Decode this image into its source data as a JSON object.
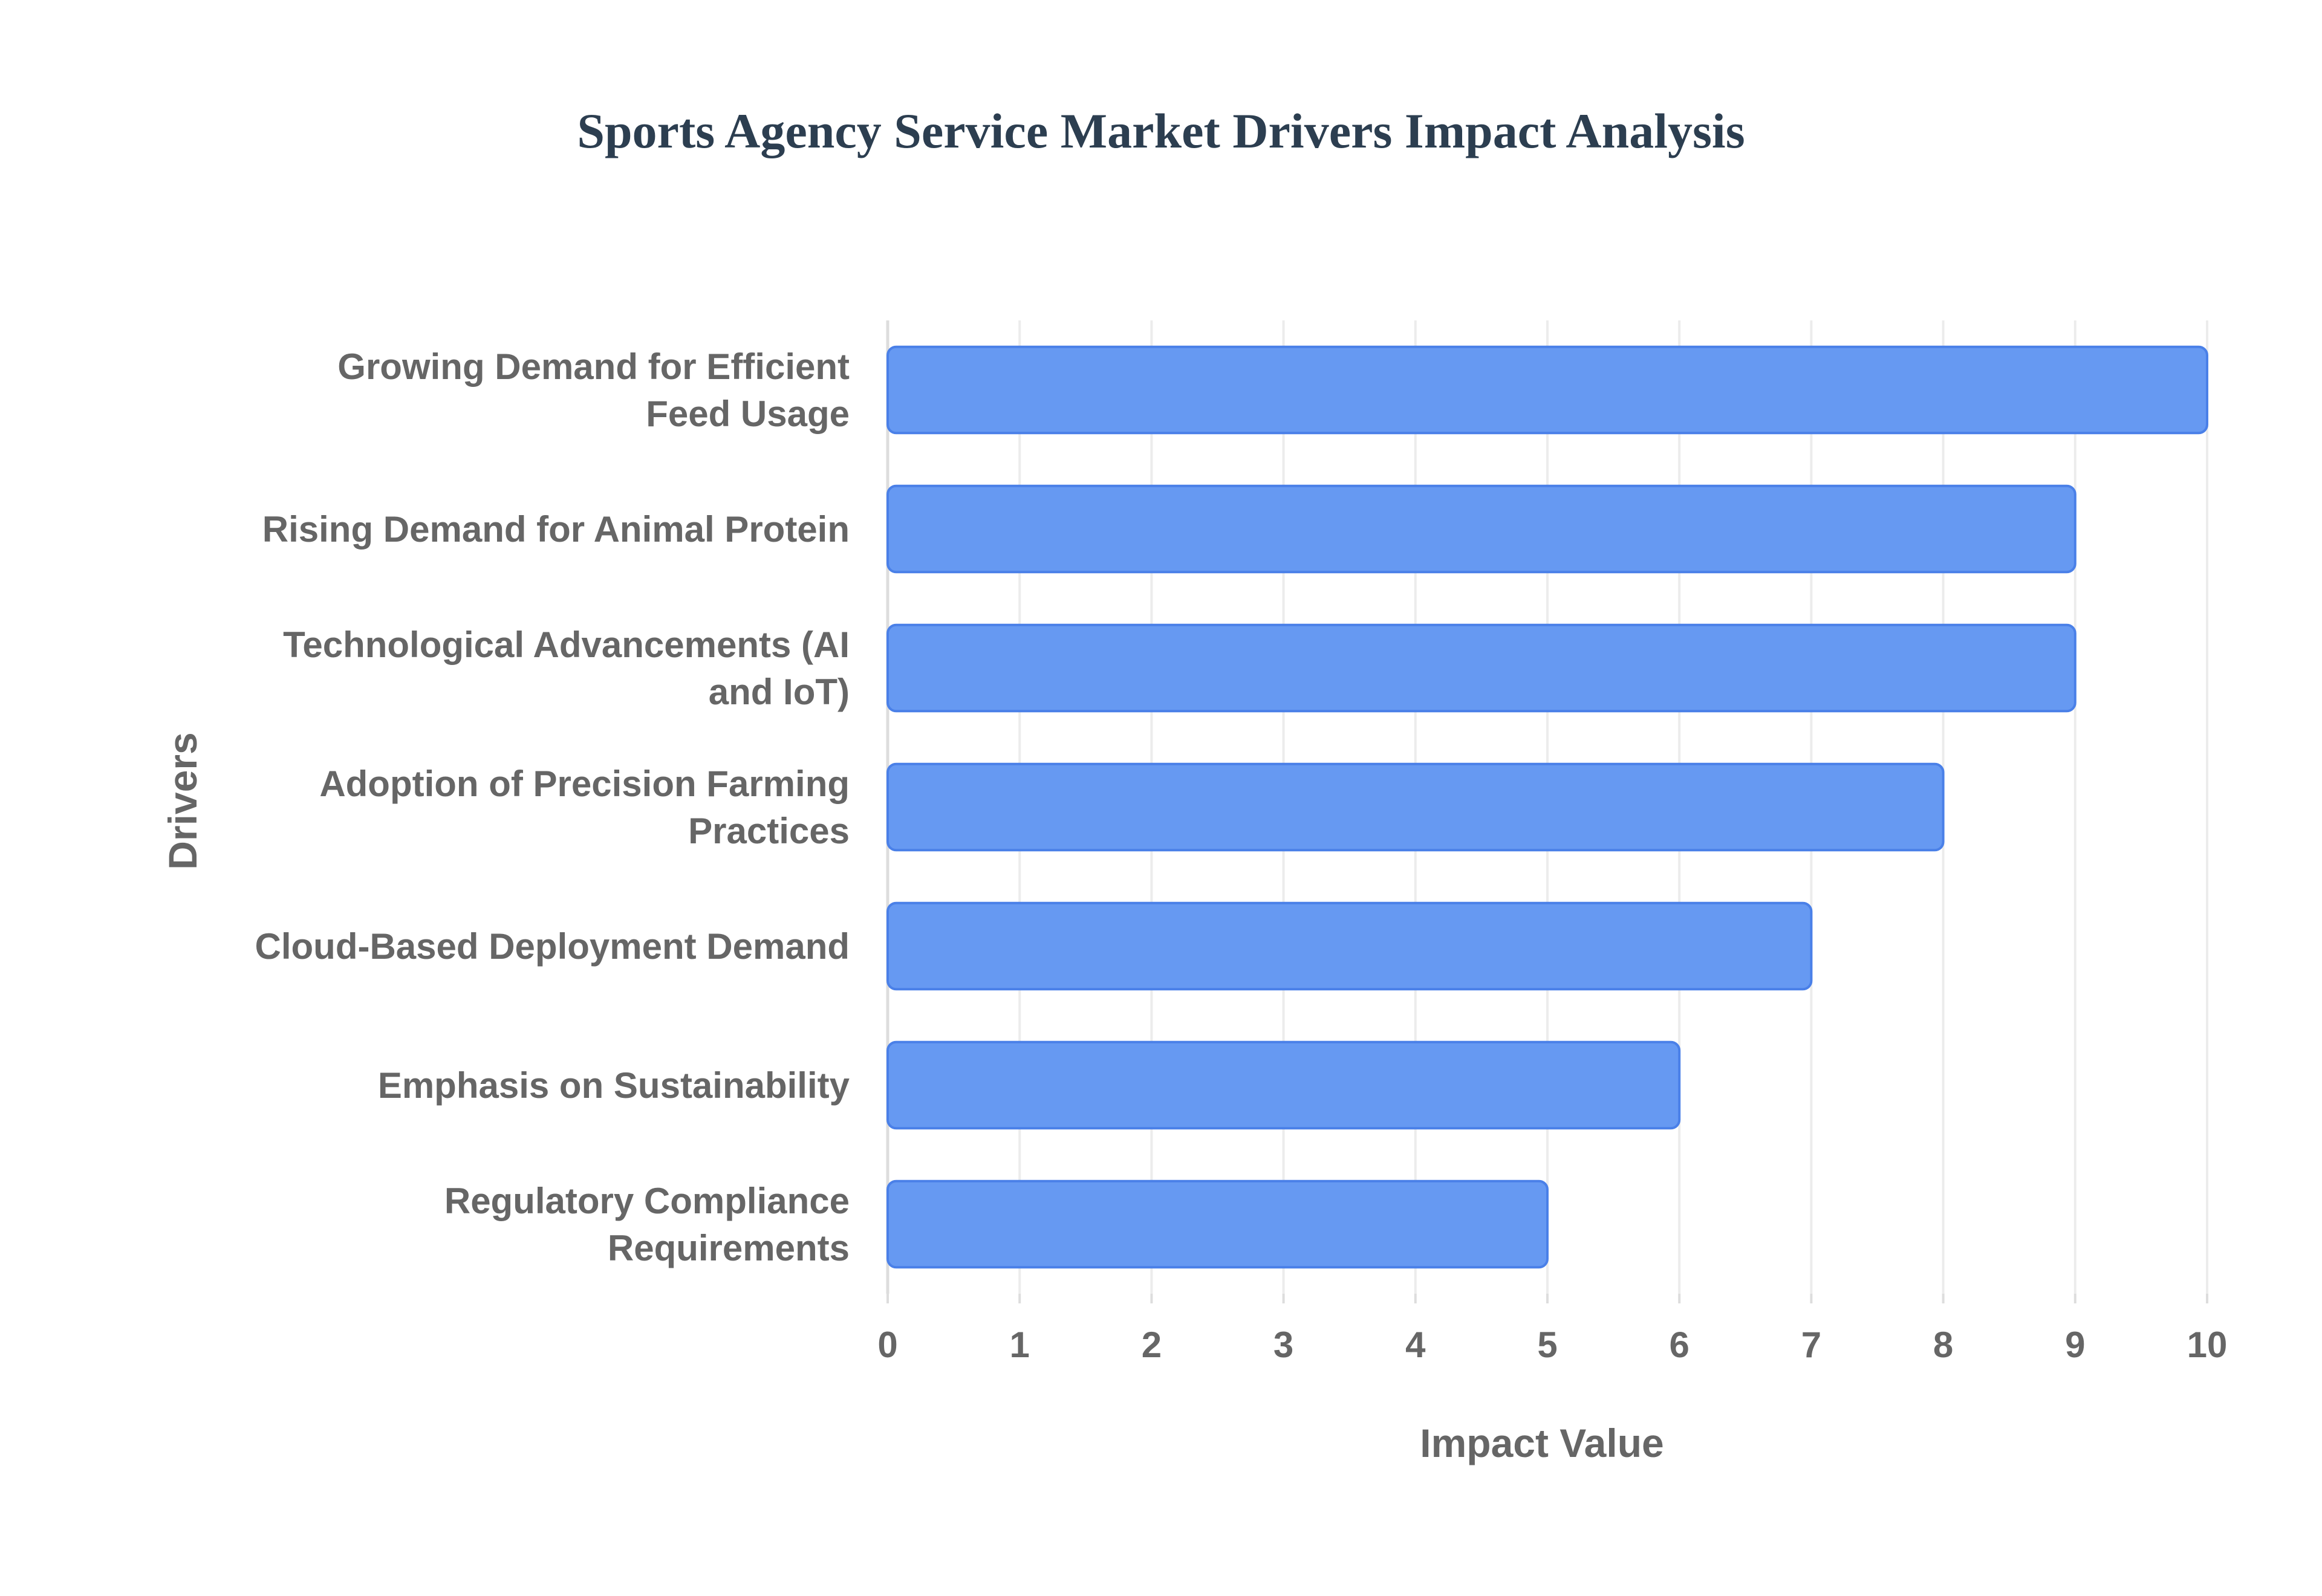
{
  "chart_data": {
    "type": "bar",
    "orientation": "horizontal",
    "title": "Sports Agency Service Market Drivers Impact Analysis",
    "xlabel": "Impact Value",
    "ylabel": "Drivers",
    "categories": [
      "Growing Demand for Efficient Feed Usage",
      "Rising Demand for Animal Protein",
      "Technological Advancements (AI and IoT)",
      "Adoption of Precision Farming Practices",
      "Cloud-Based Deployment Demand",
      "Emphasis on Sustainability",
      "Regulatory Compliance Requirements"
    ],
    "values": [
      10,
      9,
      9,
      8,
      7,
      6,
      5
    ],
    "xlim": [
      0,
      10
    ],
    "xticks": [
      "0",
      "1",
      "2",
      "3",
      "4",
      "5",
      "6",
      "7",
      "8",
      "9",
      "10"
    ],
    "grid": true,
    "legend": "none",
    "bar_color": "#6699f2",
    "bar_border_color": "#4a80e8"
  }
}
